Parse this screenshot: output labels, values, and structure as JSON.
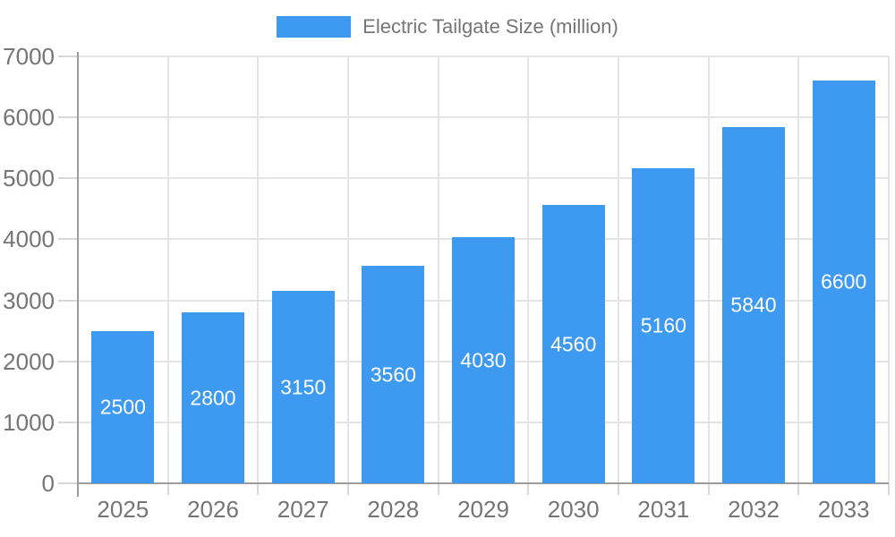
{
  "chart_data": {
    "type": "bar",
    "title": "Electric Tailgate Size (million)",
    "categories": [
      "2025",
      "2026",
      "2027",
      "2028",
      "2029",
      "2030",
      "2031",
      "2032",
      "2033"
    ],
    "values": [
      2500,
      2800,
      3150,
      3560,
      4030,
      4560,
      5160,
      5840,
      6600
    ],
    "data_labels": [
      "2500",
      "2800",
      "3150",
      "3560",
      "4030",
      "4560",
      "5160",
      "5840",
      "6600"
    ],
    "xlabel": "",
    "ylabel": "",
    "ylim": [
      0,
      7000
    ],
    "ytick_step": 1000,
    "ytick_labels": [
      "0",
      "1000",
      "2000",
      "3000",
      "4000",
      "5000",
      "6000",
      "7000"
    ],
    "grid": true,
    "legend_position": "top-center",
    "colors": {
      "bar": "#3D9AF0",
      "bar_label_text": "#FFFFFF",
      "axis_text": "#757575",
      "gridline": "#E4E4E4",
      "tick": "#D8D8D8",
      "axis_line": "#9C9C9C",
      "background": "#FFFFFF"
    }
  }
}
